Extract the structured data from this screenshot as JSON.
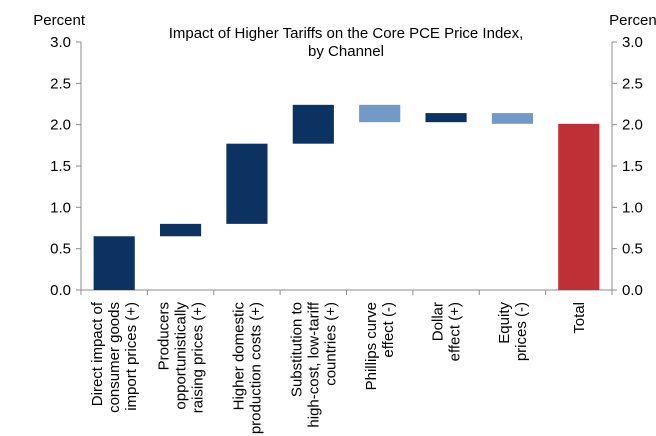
{
  "chart_data": {
    "type": "bar",
    "subtype": "waterfall",
    "title": "Impact of Higher Tariffs on the Core PCE Price Index,",
    "title_line2": "by Channel",
    "ylabel_left": "Percent",
    "ylabel_right": "Percent",
    "xlabel": "",
    "ylim": [
      0,
      3.0
    ],
    "yticks": [
      "0.0",
      "0.5",
      "1.0",
      "1.5",
      "2.0",
      "2.5",
      "3.0"
    ],
    "ytick_values": [
      0,
      0.5,
      1.0,
      1.5,
      2.0,
      2.5,
      3.0
    ],
    "grid": false,
    "legend": "none",
    "categories": [
      [
        "Direct impact of",
        "consumer goods",
        "import prices (+)"
      ],
      [
        "Producers",
        "opportunistically",
        "raising prices (+)"
      ],
      [
        "Higher domestic",
        "production costs (+)"
      ],
      [
        "Substitution to",
        "high-cost, low-tariff",
        "countries (+)"
      ],
      [
        "Phillips curve",
        "effect (-)"
      ],
      [
        "Dollar",
        "effect (+)"
      ],
      [
        "Equity",
        "prices (-)"
      ],
      [
        "Total"
      ]
    ],
    "bars": [
      {
        "name": "Direct impact of consumer goods import prices (+)",
        "start": 0.0,
        "end": 0.65,
        "change": 0.65,
        "color": "#0b3260"
      },
      {
        "name": "Producers opportunistically raising prices (+)",
        "start": 0.65,
        "end": 0.8,
        "change": 0.15,
        "color": "#0b3260"
      },
      {
        "name": "Higher domestic production costs (+)",
        "start": 0.8,
        "end": 1.77,
        "change": 0.97,
        "color": "#0b3260"
      },
      {
        "name": "Substitution to high-cost, low-tariff countries (+)",
        "start": 1.77,
        "end": 2.24,
        "change": 0.47,
        "color": "#0b3260"
      },
      {
        "name": "Phillips curve effect (-)",
        "start": 2.24,
        "end": 2.03,
        "change": -0.21,
        "color": "#7399c6"
      },
      {
        "name": "Dollar effect (+)",
        "start": 2.03,
        "end": 2.14,
        "change": 0.11,
        "color": "#0b3260"
      },
      {
        "name": "Equity prices (-)",
        "start": 2.14,
        "end": 2.01,
        "change": -0.13,
        "color": "#7399c6"
      },
      {
        "name": "Total",
        "start": 0.0,
        "end": 2.01,
        "change": 2.01,
        "color": "#be3035"
      }
    ]
  }
}
